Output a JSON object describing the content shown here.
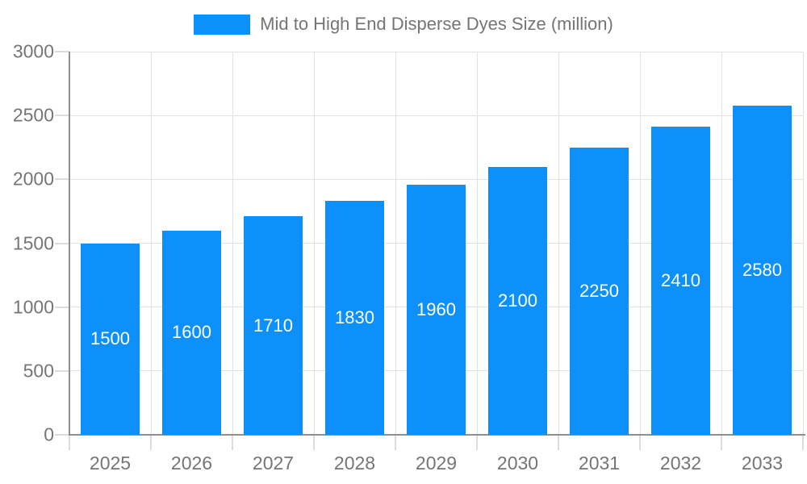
{
  "legend": {
    "label": "Mid to High End Disperse Dyes Size (million)"
  },
  "chart_data": {
    "type": "bar",
    "title": "Mid to High End Disperse Dyes Size (million)",
    "categories": [
      "2025",
      "2026",
      "2027",
      "2028",
      "2029",
      "2030",
      "2031",
      "2032",
      "2033"
    ],
    "series": [
      {
        "name": "Mid to High End Disperse Dyes Size (million)",
        "values": [
          1500,
          1600,
          1710,
          1830,
          1960,
          2100,
          2250,
          2410,
          2580
        ]
      }
    ],
    "value_labels_shown": true,
    "xlabel": "",
    "ylabel": "",
    "ylim": [
      0,
      3000
    ],
    "yticks": [
      0,
      500,
      1000,
      1500,
      2000,
      2500,
      3000
    ],
    "grid": true,
    "legend_position": "top",
    "colors": {
      "bar": "#0e90fa",
      "value_label": "#ffffff",
      "axis_text": "#757575",
      "gridline": "#e3e3e3",
      "tick": "#dcdcdc",
      "axis_line": "#8f8f8f",
      "background": "#ffffff"
    }
  }
}
